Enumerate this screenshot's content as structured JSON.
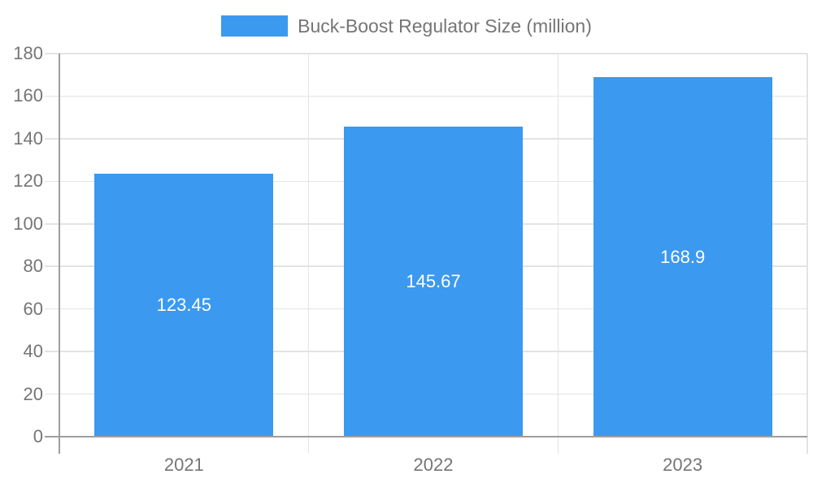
{
  "legend": {
    "label": "Buck-Boost Regulator Size (million)"
  },
  "chart_data": {
    "type": "bar",
    "title": "",
    "series_name": "Buck-Boost Regulator Size (million)",
    "categories": [
      "2021",
      "2022",
      "2023"
    ],
    "values": [
      123.45,
      145.67,
      168.9
    ],
    "value_labels": [
      "123.45",
      "145.67",
      "168.9"
    ],
    "xlabel": "",
    "ylabel": "",
    "ylim": [
      0,
      180
    ],
    "ytick_step": 20,
    "ytick_labels": [
      "0",
      "20",
      "40",
      "60",
      "80",
      "100",
      "120",
      "140",
      "160",
      "180"
    ],
    "grid": true,
    "legend_position": "top",
    "value_label_position": "inside-center"
  },
  "colors": {
    "bar": "#3b99f0",
    "axis": "#9e9e9e",
    "grid": "#e3e3e3",
    "tick_label": "#757575",
    "legend_label": "#757575",
    "value_label": "#ffffff",
    "background": "#ffffff"
  }
}
